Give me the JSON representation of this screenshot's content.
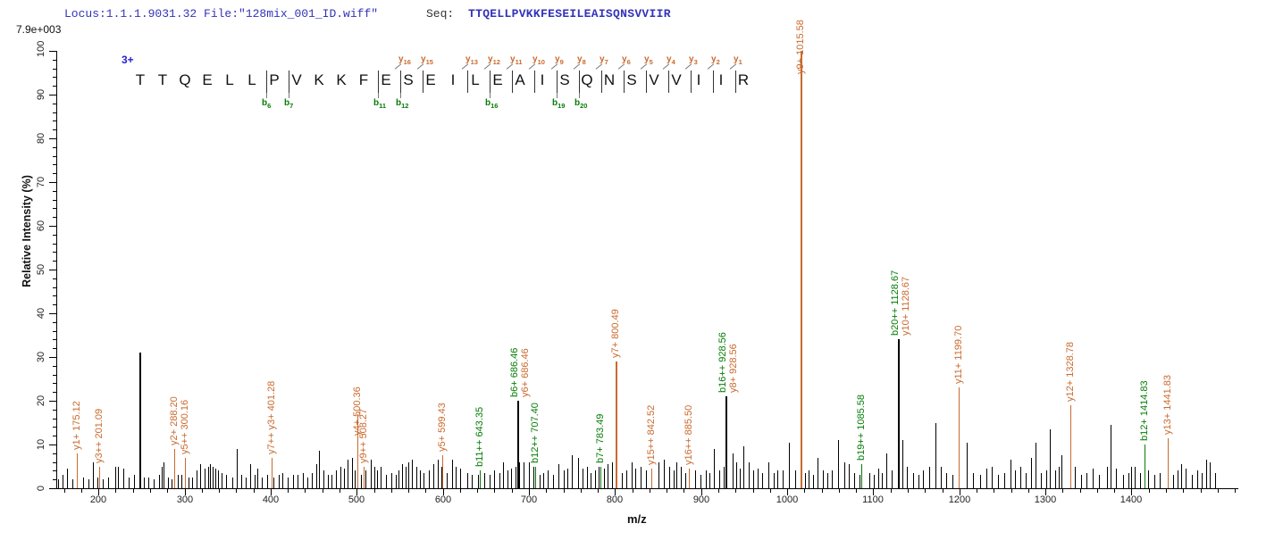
{
  "header": {
    "locus_file": "Locus:1.1.1.9031.32 File:\"128mix_001_ID.wiff\"",
    "seq_label": "Seq:",
    "sequence": "TTQELLPVKKFESEILEAISQNSVVIIR"
  },
  "scale_note": "7.9e+003",
  "colors": {
    "y_ion": "#c96a2e",
    "b_ion": "#077c07",
    "peak_black": "#000000",
    "header_blue": "#3333bb",
    "charge_blue": "#2222cc",
    "axis": "#000000",
    "tick_text": "#222222"
  },
  "peptide": {
    "charge_label": "3+",
    "residues": [
      "T",
      "T",
      "Q",
      "E",
      "L",
      "L",
      "P",
      "V",
      "K",
      "K",
      "F",
      "E",
      "S",
      "E",
      "I",
      "L",
      "E",
      "A",
      "I",
      "S",
      "Q",
      "N",
      "S",
      "V",
      "V",
      "I",
      "I",
      "R"
    ],
    "y_ions": [
      {
        "label": "y16",
        "after": 12
      },
      {
        "label": "y15",
        "after": 13
      },
      {
        "label": "y13",
        "after": 15
      },
      {
        "label": "y12",
        "after": 16
      },
      {
        "label": "y11",
        "after": 17
      },
      {
        "label": "y10",
        "after": 18
      },
      {
        "label": "y9",
        "after": 19
      },
      {
        "label": "y8",
        "after": 20
      },
      {
        "label": "y7",
        "after": 21
      },
      {
        "label": "y6",
        "after": 22
      },
      {
        "label": "y5",
        "after": 23
      },
      {
        "label": "y4",
        "after": 24
      },
      {
        "label": "y3",
        "after": 25
      },
      {
        "label": "y2",
        "after": 26
      },
      {
        "label": "y1",
        "after": 27
      }
    ],
    "b_ions": [
      {
        "label": "b6",
        "after": 6
      },
      {
        "label": "b7",
        "after": 7
      },
      {
        "label": "b11",
        "after": 11
      },
      {
        "label": "b12",
        "after": 12
      },
      {
        "label": "b16",
        "after": 16
      },
      {
        "label": "b19",
        "after": 19
      },
      {
        "label": "b20",
        "after": 20
      }
    ]
  },
  "chart_data": {
    "type": "bar",
    "xlabel": "m/z",
    "ylabel": "Relative  Intensity (%)",
    "xlim": [
      151,
      1523
    ],
    "ylim": [
      0,
      100
    ],
    "x_axis": {
      "major_ticks": [
        200,
        300,
        400,
        500,
        600,
        700,
        800,
        900,
        1000,
        1100,
        1200,
        1300,
        1400
      ],
      "minor_step": 20
    },
    "y_axis": {
      "major_ticks": [
        0,
        10,
        20,
        30,
        40,
        50,
        60,
        70,
        80,
        90,
        100
      ],
      "minor_step": 2
    },
    "labeled_peaks": [
      {
        "mz": 175.12,
        "intensity": 8,
        "peak_color": "y",
        "labels": [
          {
            "text": "y1+ 175.12",
            "ion": "y"
          }
        ]
      },
      {
        "mz": 201.09,
        "intensity": 5,
        "peak_color": "y",
        "labels": [
          {
            "text": "y3++ 201.09",
            "ion": "y"
          }
        ]
      },
      {
        "mz": 288.2,
        "intensity": 9,
        "peak_color": "y",
        "labels": [
          {
            "text": "y2+ 288.20",
            "ion": "y"
          }
        ]
      },
      {
        "mz": 300.16,
        "intensity": 7,
        "peak_color": "y",
        "labels": [
          {
            "text": "y5++ 300.16",
            "ion": "y"
          }
        ]
      },
      {
        "mz": 401.28,
        "intensity": 7,
        "peak_color": "y",
        "labels": [
          {
            "text": "y7++ y3+ 401.28",
            "ion": "y"
          }
        ]
      },
      {
        "mz": 500.36,
        "intensity": 17,
        "peak_color": "y",
        "label_drop": 28,
        "labels": [
          {
            "text": "y4+ 500.36",
            "ion": "y"
          }
        ]
      },
      {
        "mz": 508.27,
        "intensity": 5,
        "peak_color": "y",
        "labels": [
          {
            "text": "y9++ 508.27",
            "ion": "y"
          }
        ]
      },
      {
        "mz": 599.43,
        "intensity": 7.5,
        "peak_color": "y",
        "labels": [
          {
            "text": "y5+ 599.43",
            "ion": "y"
          }
        ]
      },
      {
        "mz": 643.35,
        "intensity": 4,
        "peak_color": "b",
        "labels": [
          {
            "text": "b11++ 643.35",
            "ion": "b"
          }
        ]
      },
      {
        "mz": 686.46,
        "intensity": 20,
        "peak_color": "both",
        "labels": [
          {
            "text": "b6+ 686.46",
            "ion": "b"
          },
          {
            "text": "y6+ 686.46",
            "ion": "y"
          }
        ]
      },
      {
        "mz": 707.4,
        "intensity": 5,
        "peak_color": "b",
        "labels": [
          {
            "text": "b12++ 707.40",
            "ion": "b"
          }
        ]
      },
      {
        "mz": 783.49,
        "intensity": 5,
        "peak_color": "b",
        "labels": [
          {
            "text": "b7+ 783.49",
            "ion": "b"
          }
        ]
      },
      {
        "mz": 800.49,
        "intensity": 29,
        "peak_color": "y",
        "labels": [
          {
            "text": "y7+ 800.49",
            "ion": "y"
          }
        ]
      },
      {
        "mz": 842.52,
        "intensity": 4.5,
        "peak_color": "y",
        "labels": [
          {
            "text": "y15++ 842.52",
            "ion": "y"
          }
        ]
      },
      {
        "mz": 885.5,
        "intensity": 4.5,
        "peak_color": "y",
        "labels": [
          {
            "text": "y16++ 885.50",
            "ion": "y"
          }
        ]
      },
      {
        "mz": 928.56,
        "intensity": 21,
        "peak_color": "both",
        "labels": [
          {
            "text": "b16++ 928.56",
            "ion": "b"
          },
          {
            "text": "y8+ 928.56",
            "ion": "y"
          }
        ]
      },
      {
        "mz": 1015.58,
        "intensity": 100,
        "peak_color": "y",
        "label_drop": 30,
        "labels": [
          {
            "text": "y9+ 1015.58",
            "ion": "y"
          }
        ]
      },
      {
        "mz": 1085.58,
        "intensity": 5.5,
        "peak_color": "b",
        "labels": [
          {
            "text": "b19++ 1085.58",
            "ion": "b"
          }
        ]
      },
      {
        "mz": 1128.67,
        "intensity": 34,
        "peak_color": "both",
        "labels": [
          {
            "text": "b20++ 1128.67",
            "ion": "b"
          },
          {
            "text": "y10+ 1128.67",
            "ion": "y"
          }
        ]
      },
      {
        "mz": 1199.7,
        "intensity": 23,
        "peak_color": "y",
        "labels": [
          {
            "text": "y11+ 1199.70",
            "ion": "y"
          }
        ]
      },
      {
        "mz": 1328.78,
        "intensity": 19,
        "peak_color": "y",
        "labels": [
          {
            "text": "y12+ 1328.78",
            "ion": "y"
          }
        ]
      },
      {
        "mz": 1414.83,
        "intensity": 10,
        "peak_color": "b",
        "labels": [
          {
            "text": "b12+ 1414.83",
            "ion": "b"
          }
        ]
      },
      {
        "mz": 1441.83,
        "intensity": 11.5,
        "peak_color": "y",
        "labels": [
          {
            "text": "y13+ 1441.83",
            "ion": "y"
          }
        ]
      }
    ],
    "unlabeled_peaks": [
      [
        153,
        2
      ],
      [
        158,
        3
      ],
      [
        163,
        4.5
      ],
      [
        170,
        2
      ],
      [
        182,
        2.5
      ],
      [
        188,
        2
      ],
      [
        194,
        6
      ],
      [
        199,
        2.5
      ],
      [
        205,
        2
      ],
      [
        211,
        2.5
      ],
      [
        219,
        5
      ],
      [
        223,
        5
      ],
      [
        229,
        4.5
      ],
      [
        235,
        2.5
      ],
      [
        241,
        3
      ],
      [
        248,
        31
      ],
      [
        253,
        2.5
      ],
      [
        258,
        2.5
      ],
      [
        264,
        2
      ],
      [
        270,
        3
      ],
      [
        273,
        5
      ],
      [
        276,
        6
      ],
      [
        281,
        2.5
      ],
      [
        285,
        2
      ],
      [
        292,
        3
      ],
      [
        296,
        3
      ],
      [
        305,
        2.5
      ],
      [
        309,
        2.5
      ],
      [
        314,
        4
      ],
      [
        318,
        5.5
      ],
      [
        323,
        4.5
      ],
      [
        327,
        5
      ],
      [
        330,
        5.5
      ],
      [
        333,
        5
      ],
      [
        336,
        4.5
      ],
      [
        339,
        4
      ],
      [
        343,
        3.5
      ],
      [
        348,
        3
      ],
      [
        355,
        2.5
      ],
      [
        361,
        9
      ],
      [
        366,
        3
      ],
      [
        371,
        2.5
      ],
      [
        376,
        5.5
      ],
      [
        381,
        3
      ],
      [
        385,
        4.5
      ],
      [
        390,
        2.5
      ],
      [
        396,
        3
      ],
      [
        403,
        2.5
      ],
      [
        409,
        3
      ],
      [
        414,
        3.5
      ],
      [
        420,
        2.5
      ],
      [
        426,
        3
      ],
      [
        431,
        3
      ],
      [
        437,
        3.5
      ],
      [
        443,
        2.5
      ],
      [
        448,
        3.5
      ],
      [
        453,
        5.5
      ],
      [
        456,
        8.5
      ],
      [
        461,
        4
      ],
      [
        466,
        3
      ],
      [
        471,
        3
      ],
      [
        476,
        4
      ],
      [
        481,
        5
      ],
      [
        485,
        4.5
      ],
      [
        489,
        6.5
      ],
      [
        494,
        7
      ],
      [
        498,
        4
      ],
      [
        505,
        3
      ],
      [
        510,
        4
      ],
      [
        516,
        6.5
      ],
      [
        520,
        5
      ],
      [
        524,
        4
      ],
      [
        528,
        5
      ],
      [
        534,
        3
      ],
      [
        540,
        3.5
      ],
      [
        545,
        3
      ],
      [
        549,
        4
      ],
      [
        553,
        5.5
      ],
      [
        557,
        5
      ],
      [
        560,
        6
      ],
      [
        564,
        6.5
      ],
      [
        569,
        5
      ],
      [
        573,
        4
      ],
      [
        578,
        3.5
      ],
      [
        584,
        4
      ],
      [
        589,
        5.5
      ],
      [
        594,
        6.5
      ],
      [
        598,
        5
      ],
      [
        605,
        3.5
      ],
      [
        611,
        6.5
      ],
      [
        615,
        5
      ],
      [
        620,
        4.5
      ],
      [
        628,
        3.5
      ],
      [
        634,
        3
      ],
      [
        641,
        3
      ],
      [
        648,
        3.5
      ],
      [
        654,
        3
      ],
      [
        660,
        4
      ],
      [
        666,
        3.5
      ],
      [
        670,
        6
      ],
      [
        675,
        4
      ],
      [
        679,
        4.5
      ],
      [
        684,
        5
      ],
      [
        689,
        6
      ],
      [
        694,
        6
      ],
      [
        700,
        6
      ],
      [
        705,
        5
      ],
      [
        712,
        3
      ],
      [
        717,
        3.5
      ],
      [
        722,
        4
      ],
      [
        728,
        3
      ],
      [
        734,
        5.5
      ],
      [
        740,
        4
      ],
      [
        745,
        4.5
      ],
      [
        750,
        7.5
      ],
      [
        757,
        7
      ],
      [
        762,
        4.5
      ],
      [
        767,
        5
      ],
      [
        772,
        3.5
      ],
      [
        777,
        4
      ],
      [
        781,
        5
      ],
      [
        787,
        4.5
      ],
      [
        791,
        5.5
      ],
      [
        797,
        6
      ],
      [
        808,
        3.5
      ],
      [
        813,
        4
      ],
      [
        819,
        6
      ],
      [
        824,
        4.5
      ],
      [
        830,
        5
      ],
      [
        836,
        4
      ],
      [
        842,
        3
      ],
      [
        851,
        6
      ],
      [
        857,
        6.5
      ],
      [
        863,
        5
      ],
      [
        868,
        4
      ],
      [
        871,
        6
      ],
      [
        876,
        5
      ],
      [
        882,
        3.5
      ],
      [
        893,
        4
      ],
      [
        899,
        3
      ],
      [
        905,
        4
      ],
      [
        910,
        3.5
      ],
      [
        915,
        9
      ],
      [
        921,
        4
      ],
      [
        926,
        5
      ],
      [
        937,
        8
      ],
      [
        941,
        6
      ],
      [
        945,
        4.5
      ],
      [
        949,
        9.5
      ],
      [
        955,
        6
      ],
      [
        960,
        4
      ],
      [
        966,
        4.5
      ],
      [
        971,
        3.5
      ],
      [
        978,
        6
      ],
      [
        984,
        3.5
      ],
      [
        989,
        4
      ],
      [
        995,
        4
      ],
      [
        1002,
        10.5
      ],
      [
        1009,
        4
      ],
      [
        1021,
        3.5
      ],
      [
        1025,
        4
      ],
      [
        1030,
        3
      ],
      [
        1035,
        7
      ],
      [
        1041,
        4
      ],
      [
        1047,
        3.5
      ],
      [
        1052,
        4
      ],
      [
        1059,
        11
      ],
      [
        1066,
        6
      ],
      [
        1072,
        5.5
      ],
      [
        1078,
        3.5
      ],
      [
        1084,
        3
      ],
      [
        1095,
        3.5
      ],
      [
        1101,
        3
      ],
      [
        1106,
        4.5
      ],
      [
        1110,
        3.5
      ],
      [
        1115,
        8
      ],
      [
        1121,
        4
      ],
      [
        1134,
        11
      ],
      [
        1139,
        5
      ],
      [
        1146,
        3.5
      ],
      [
        1152,
        3
      ],
      [
        1158,
        4
      ],
      [
        1165,
        5
      ],
      [
        1172,
        15
      ],
      [
        1178,
        5
      ],
      [
        1185,
        3.5
      ],
      [
        1192,
        3
      ],
      [
        1209,
        10.5
      ],
      [
        1216,
        3.5
      ],
      [
        1224,
        3
      ],
      [
        1231,
        4.5
      ],
      [
        1238,
        5
      ],
      [
        1245,
        3
      ],
      [
        1252,
        3.5
      ],
      [
        1259,
        6.5
      ],
      [
        1265,
        4
      ],
      [
        1271,
        5
      ],
      [
        1277,
        3.5
      ],
      [
        1283,
        7
      ],
      [
        1288,
        10.5
      ],
      [
        1295,
        3.5
      ],
      [
        1301,
        4
      ],
      [
        1305,
        13.5
      ],
      [
        1311,
        4
      ],
      [
        1315,
        5
      ],
      [
        1319,
        7.5
      ],
      [
        1334,
        5
      ],
      [
        1341,
        3
      ],
      [
        1348,
        3.5
      ],
      [
        1355,
        4.5
      ],
      [
        1362,
        3
      ],
      [
        1371,
        5
      ],
      [
        1376,
        14.5
      ],
      [
        1382,
        4.5
      ],
      [
        1390,
        3
      ],
      [
        1396,
        3.5
      ],
      [
        1400,
        5
      ],
      [
        1404,
        5
      ],
      [
        1410,
        3.5
      ],
      [
        1419,
        4
      ],
      [
        1426,
        3
      ],
      [
        1433,
        3.5
      ],
      [
        1448,
        3
      ],
      [
        1453,
        4
      ],
      [
        1458,
        5.5
      ],
      [
        1463,
        4.5
      ],
      [
        1470,
        3
      ],
      [
        1476,
        4
      ],
      [
        1482,
        3.5
      ],
      [
        1487,
        6.5
      ],
      [
        1491,
        6
      ],
      [
        1497,
        3.5
      ]
    ]
  }
}
